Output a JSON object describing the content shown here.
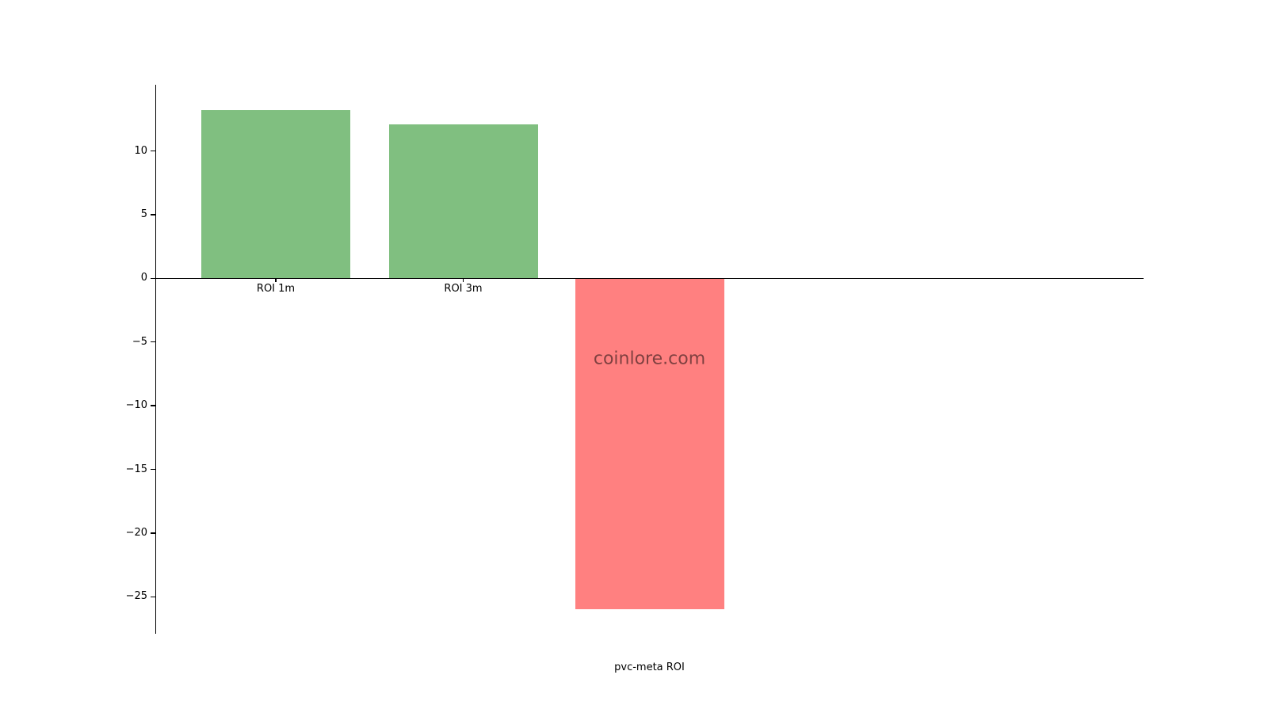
{
  "chart_data": {
    "type": "bar",
    "title": "",
    "xlabel": "pvc-meta ROI",
    "ylabel": "",
    "watermark": "coinlore.com",
    "categories": [
      "ROI 1m",
      "ROI 3m",
      ""
    ],
    "values": [
      13.2,
      12.1,
      -26
    ],
    "bar_colors": [
      "#80bf80",
      "#80bf80",
      "#ff8080"
    ],
    "yticks": [
      10,
      5,
      0,
      -5,
      -10,
      -15,
      -20,
      -25
    ],
    "ylim": [
      -27.9,
      15.2
    ],
    "grid": false,
    "legend": "none",
    "axis_color": "#000000",
    "tick_label_color": "#000000",
    "watermark_color": "rgba(0,0,0,0.5)",
    "background_color": "#ffffff"
  }
}
